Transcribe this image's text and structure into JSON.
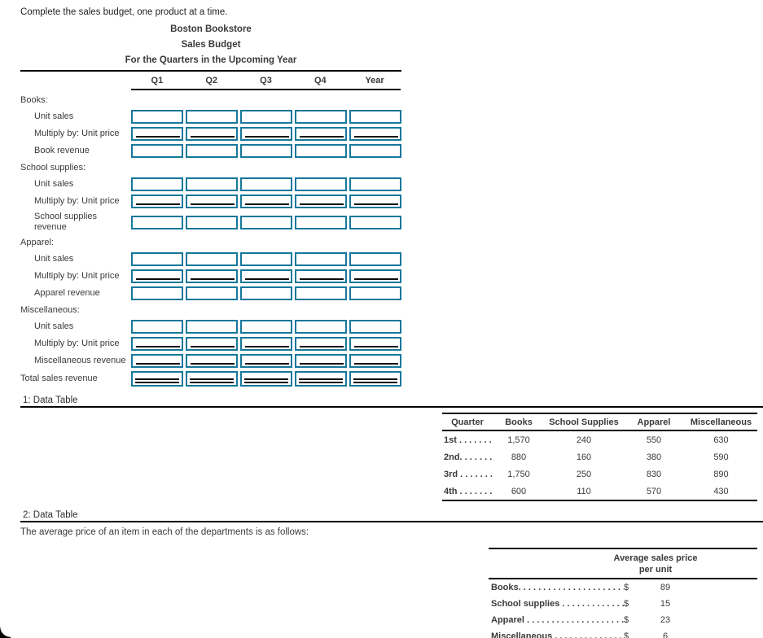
{
  "prompt": "Complete the sales budget, one product at a time.",
  "colors": {
    "input_border": "#16789B",
    "rule": "#000000"
  },
  "statement": {
    "title": "Boston Bookstore",
    "subtitle": "Sales Budget",
    "period": "For the Quarters in the Upcoming Year",
    "columns": [
      "Q1",
      "Q2",
      "Q3",
      "Q4",
      "Year"
    ],
    "sections": [
      {
        "label": "Books:",
        "rows": [
          {
            "label": "Unit sales",
            "style": "plain"
          },
          {
            "label": "Multiply by: Unit price",
            "style": "underline"
          },
          {
            "label": "Book revenue",
            "style": "plain"
          }
        ]
      },
      {
        "label": "School supplies:",
        "rows": [
          {
            "label": "Unit sales",
            "style": "plain"
          },
          {
            "label": "Multiply by: Unit price",
            "style": "underline"
          },
          {
            "label": "School supplies revenue",
            "style": "plain"
          }
        ]
      },
      {
        "label": "Apparel:",
        "rows": [
          {
            "label": "Unit sales",
            "style": "plain"
          },
          {
            "label": "Multiply by: Unit price",
            "style": "underline"
          },
          {
            "label": "Apparel revenue",
            "style": "plain"
          }
        ]
      },
      {
        "label": "Miscellaneous:",
        "rows": [
          {
            "label": "Unit sales",
            "style": "plain"
          },
          {
            "label": "Multiply by: Unit price",
            "style": "underline"
          },
          {
            "label": "Miscellaneous revenue",
            "style": "underline"
          }
        ]
      }
    ],
    "total_row": {
      "label": "Total sales revenue",
      "style": "double"
    },
    "input_values": ""
  },
  "data_table_1": {
    "heading": "1: Data Table",
    "columns": [
      "Quarter",
      "Books",
      "School Supplies",
      "Apparel",
      "Miscellaneous"
    ],
    "rows": [
      {
        "quarter": "1st . . . . . . .",
        "books": "1,570",
        "school_supplies": "240",
        "apparel": "550",
        "miscellaneous": "630"
      },
      {
        "quarter": "2nd. . . . . . .",
        "books": "880",
        "school_supplies": "160",
        "apparel": "380",
        "miscellaneous": "590"
      },
      {
        "quarter": "3rd . . . . . . .",
        "books": "1,750",
        "school_supplies": "250",
        "apparel": "830",
        "miscellaneous": "890"
      },
      {
        "quarter": "4th . . . . . . .",
        "books": "600",
        "school_supplies": "110",
        "apparel": "570",
        "miscellaneous": "430"
      }
    ]
  },
  "data_table_2": {
    "heading": "2: Data Table",
    "note": "The average price of an item in each of the departments is as follows:",
    "header_line1": "Average sales price",
    "header_line2": "per unit",
    "rows": [
      {
        "label": "Books. . . . . . . . . . . . . . . . . . . . . . . .",
        "currency": "$",
        "value": "89"
      },
      {
        "label": "School supplies . . . . . . . . . . . . . . .",
        "currency": "$",
        "value": "15"
      },
      {
        "label": "Apparel . . . . . . . . . . . . . . . . . . . . . .",
        "currency": "$",
        "value": "23"
      },
      {
        "label": "Miscellaneous . . . . . . . . . . . . . . . .",
        "currency": "$",
        "value": "6"
      }
    ]
  }
}
